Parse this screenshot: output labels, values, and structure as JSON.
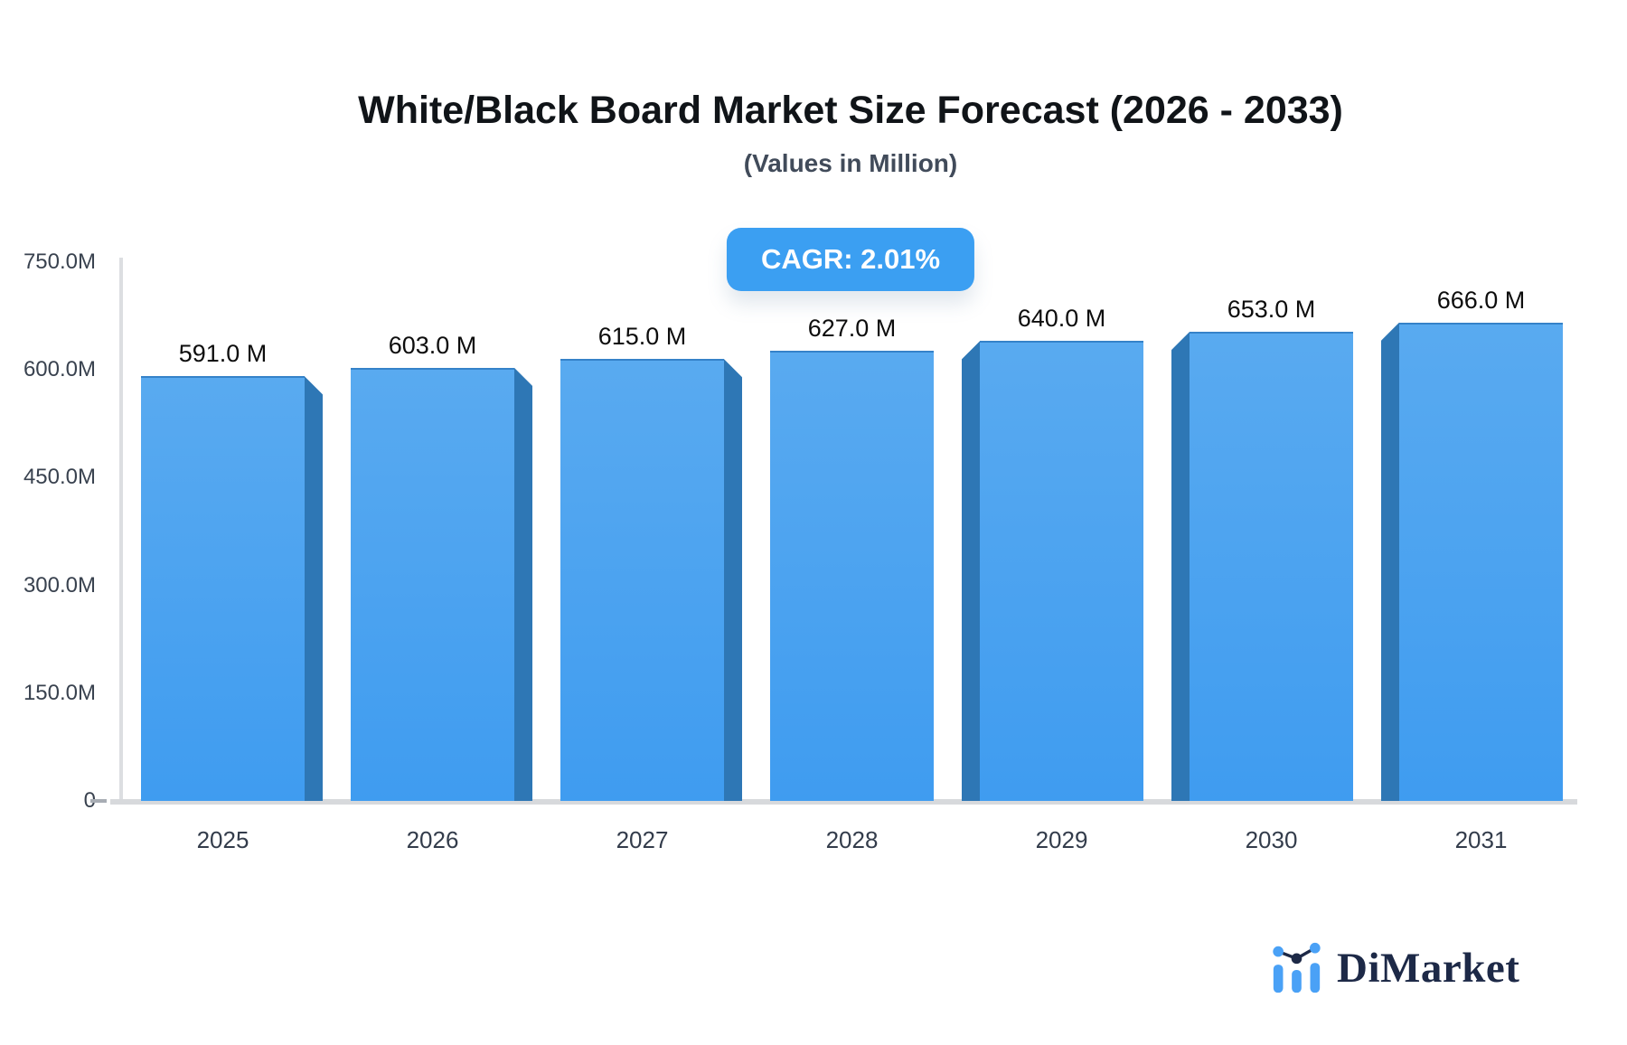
{
  "page": {
    "background": "#ffffff"
  },
  "header": {
    "title": "White/Black Board Market Size Forecast (2026 - 2033)",
    "subtitle": "(Values in Million)"
  },
  "badge": {
    "label": "CAGR: 2.01%",
    "bg": "#3b9ff2",
    "text_color": "#ffffff"
  },
  "chart_data": {
    "type": "bar",
    "title": "White/Black Board Market Size Forecast (2026 - 2033)",
    "subtitle": "(Values in Million)",
    "unit": "Million",
    "categories": [
      "2025",
      "2026",
      "2027",
      "2028",
      "2029",
      "2030",
      "2031"
    ],
    "values": [
      591,
      603,
      615,
      627,
      640,
      653,
      666
    ],
    "value_labels": [
      "591.0 M",
      "603.0 M",
      "615.0 M",
      "627.0 M",
      "640.0 M",
      "653.0 M",
      "666.0 M"
    ],
    "cagr_percent": "2.01%",
    "xlabel": "",
    "ylabel": "",
    "ylim": [
      0,
      750
    ],
    "yticks": {
      "values": [
        750,
        600,
        450,
        300,
        150,
        0
      ],
      "labels": [
        "750.0M",
        "600.0M",
        "450.0M",
        "300.0M",
        "150.0M",
        "0"
      ]
    },
    "grid": false,
    "legend": false,
    "bar_style_3d": true,
    "colors": {
      "bar_face_top": "#59aaf0",
      "bar_face_bottom": "#3f9cf0",
      "bar_side": "#2e77b5",
      "axis_line": "#dcdee1",
      "baseline": "#d7d9dc"
    }
  },
  "logo": {
    "name": "DiMarket",
    "icon": "mini-bar-chart-icon",
    "text_color": "#1d2947",
    "icon_blue": "#4aa1f6",
    "icon_navy": "#1d2947"
  }
}
